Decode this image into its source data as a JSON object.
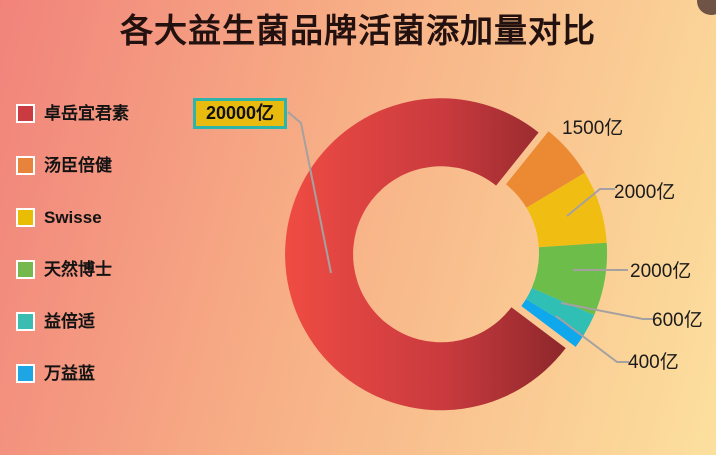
{
  "title": "各大益生菌品牌活菌添加量对比",
  "legend": {
    "items": [
      {
        "label": "卓岳宜君素",
        "color": "#c93b40"
      },
      {
        "label": "汤臣倍健",
        "color": "#e8833b"
      },
      {
        "label": "Swisse",
        "color": "#e9bd04"
      },
      {
        "label": "天然博士",
        "color": "#75b84d"
      },
      {
        "label": "益倍适",
        "color": "#3abdb0"
      },
      {
        "label": "万益蓝",
        "color": "#1ea6e4"
      }
    ]
  },
  "chart_data": {
    "type": "pie",
    "subtype": "donut",
    "title": "各大益生菌品牌活菌添加量对比",
    "unit": "亿",
    "legend_position": "left",
    "slices": [
      {
        "name": "卓岳宜君素",
        "value": 20000,
        "label": "20000亿",
        "color_start": "#ee4b43",
        "color_end": "#7c2226",
        "highlight": true
      },
      {
        "name": "汤臣倍健",
        "value": 1500,
        "label": "1500亿",
        "color": "#ec8933"
      },
      {
        "name": "Swisse",
        "value": 2000,
        "label": "2000亿",
        "color": "#f0bd13"
      },
      {
        "name": "天然博士",
        "value": 2000,
        "label": "2000亿",
        "color": "#6cbd4a"
      },
      {
        "name": "益倍适",
        "value": 600,
        "label": "600亿",
        "color": "#2fbfb4"
      },
      {
        "name": "万益蓝",
        "value": 400,
        "label": "400亿",
        "color": "#10a8ec"
      }
    ],
    "callout": {
      "text": "20000亿",
      "box_fill": "#e9bb0e",
      "box_border": "#2cb5a8"
    },
    "colors": {
      "leader_line": "#a5a1a1",
      "label_text": "#1b1b1b"
    }
  }
}
